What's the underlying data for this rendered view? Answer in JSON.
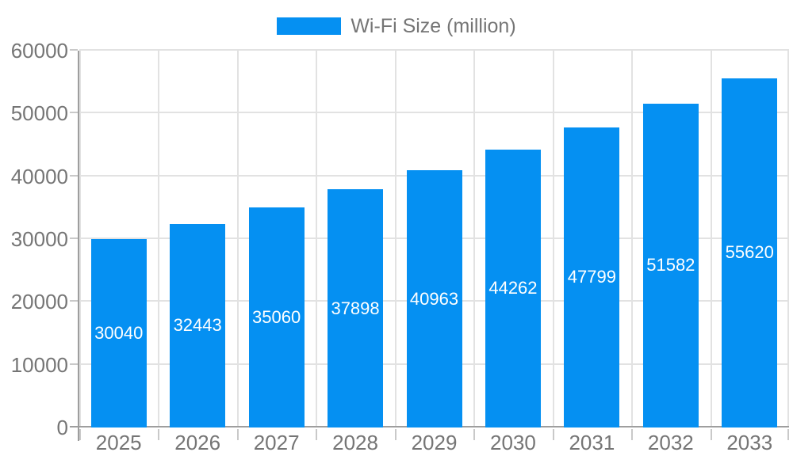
{
  "chart_data": {
    "type": "bar",
    "title": "",
    "categories": [
      "2025",
      "2026",
      "2027",
      "2028",
      "2029",
      "2030",
      "2031",
      "2032",
      "2033"
    ],
    "series": [
      {
        "name": "Wi-Fi Size (million)",
        "values": [
          30040,
          32443,
          35060,
          37898,
          40963,
          44262,
          47799,
          51582,
          55620
        ]
      }
    ],
    "xlabel": "",
    "ylabel": "",
    "ylim": [
      0,
      60000
    ],
    "ytick_step": 10000,
    "ytick_labels": [
      "0",
      "10000",
      "20000",
      "30000",
      "40000",
      "50000",
      "60000"
    ],
    "grid": true,
    "legend_position": "top-center",
    "value_labels": "inside-middle",
    "colors": {
      "bar": "#0590F2",
      "value_label": "#ffffff",
      "axis_label": "#757575",
      "gridline": "#e2e2e2",
      "axis_line": "#9e9e9e",
      "tick": "#c9c9c9",
      "background": "#ffffff"
    }
  }
}
